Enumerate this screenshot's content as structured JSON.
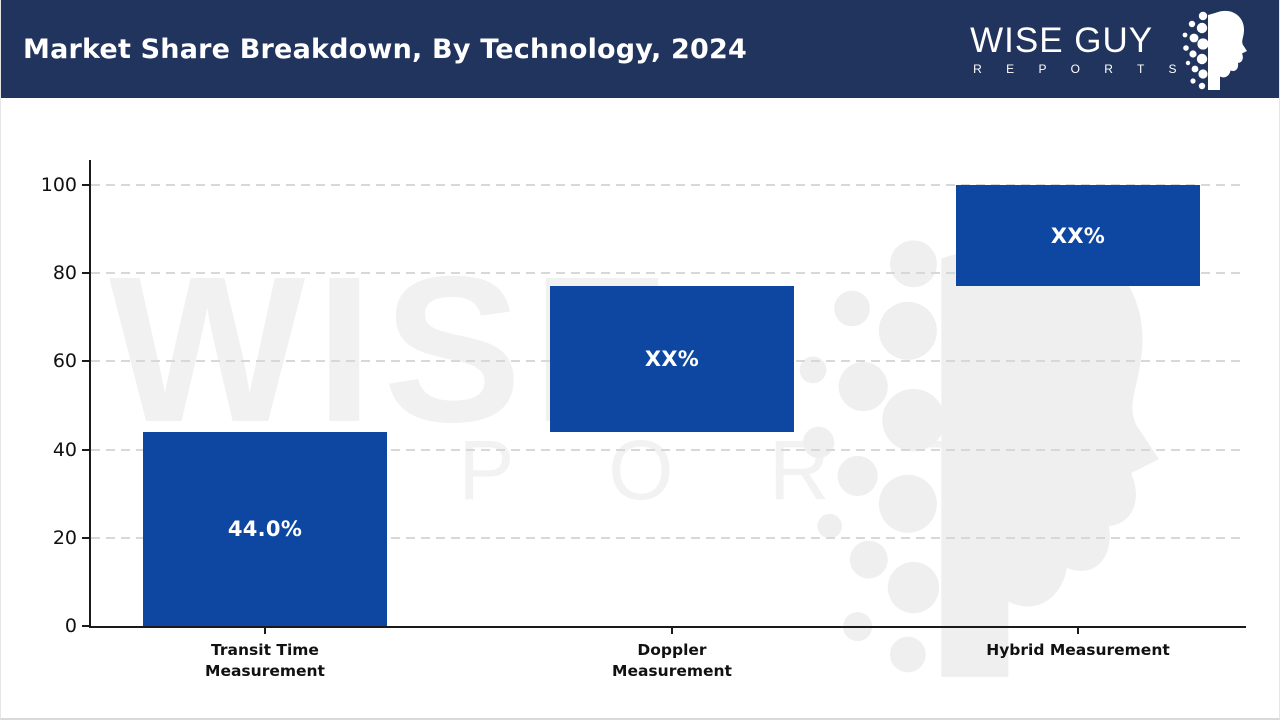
{
  "header": {
    "title": "Market Share Breakdown, By Technology, 2024",
    "logo": {
      "line1": "WISE GUY",
      "line2": "R E P O R T S"
    }
  },
  "watermark": {
    "line1": "WISE",
    "line2": "R E P O R T S"
  },
  "chart_data": {
    "type": "bar",
    "subtype": "floating-segment-waterfall",
    "title": "Market Share Breakdown, By Technology, 2024",
    "categories": [
      "Transit Time Measurement",
      "Doppler Measurement",
      "Hybrid Measurement"
    ],
    "category_lines": [
      [
        "Transit Time",
        "Measurement"
      ],
      [
        "Doppler",
        "Measurement"
      ],
      [
        "Hybrid Measurement"
      ]
    ],
    "bars": [
      {
        "category": "Transit Time Measurement",
        "start": 0,
        "end": 44,
        "label": "44.0%"
      },
      {
        "category": "Doppler Measurement",
        "start": 44,
        "end": 77,
        "label": "XX%"
      },
      {
        "category": "Hybrid Measurement",
        "start": 77,
        "end": 100,
        "label": "XX%"
      }
    ],
    "xlabel": "",
    "ylabel": "",
    "yticks": [
      0,
      20,
      40,
      60,
      80,
      100
    ],
    "ylim": [
      0,
      105
    ],
    "grid": {
      "horizontal": true,
      "style": "dashed",
      "color": "#d8d8d8"
    },
    "legend": "none",
    "colors": {
      "bar": "#0d47a1",
      "header_bg": "#21345e",
      "bar_label_text": "#ffffff",
      "axis": "#1a1a1a",
      "watermark": "#f1f1f1"
    }
  }
}
